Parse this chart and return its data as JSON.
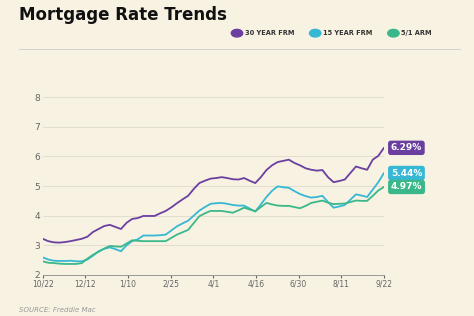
{
  "title": "Mortgage Rate Trends",
  "background_color": "#f7f2e2",
  "source_text": "SOURCE: Freddie Mac",
  "x_labels": [
    "10/22",
    "12/12",
    "1/10",
    "2/25",
    "4/1",
    "4/16",
    "6/30",
    "8/11",
    "9/22"
  ],
  "ylim": [
    2,
    8.4
  ],
  "yticks": [
    2,
    3,
    4,
    5,
    6,
    7,
    8
  ],
  "series": {
    "30 YEAR FRM": {
      "color": "#6b3fa0",
      "end_value": "6.29%",
      "badge_color": "#6b3fa0",
      "data": [
        3.22,
        3.14,
        3.1,
        3.09,
        3.11,
        3.14,
        3.18,
        3.22,
        3.29,
        3.45,
        3.55,
        3.65,
        3.69,
        3.62,
        3.55,
        3.76,
        3.89,
        3.92,
        3.99,
        3.99,
        3.99,
        4.08,
        4.16,
        4.28,
        4.42,
        4.55,
        4.67,
        4.9,
        5.1,
        5.18,
        5.25,
        5.27,
        5.3,
        5.27,
        5.23,
        5.22,
        5.27,
        5.18,
        5.1,
        5.3,
        5.54,
        5.7,
        5.81,
        5.85,
        5.89,
        5.78,
        5.7,
        5.6,
        5.55,
        5.52,
        5.54,
        5.3,
        5.13,
        5.17,
        5.22,
        5.44,
        5.66,
        5.6,
        5.55,
        5.89,
        6.02,
        6.29
      ]
    },
    "15 YEAR FRM": {
      "color": "#36b8d4",
      "end_value": "5.44%",
      "badge_color": "#36b8d4",
      "data": [
        2.59,
        2.52,
        2.48,
        2.47,
        2.47,
        2.48,
        2.46,
        2.46,
        2.52,
        2.65,
        2.8,
        2.88,
        2.93,
        2.87,
        2.8,
        3.0,
        3.14,
        3.2,
        3.33,
        3.33,
        3.33,
        3.34,
        3.36,
        3.5,
        3.64,
        3.74,
        3.83,
        4.0,
        4.17,
        4.29,
        4.4,
        4.42,
        4.43,
        4.4,
        4.36,
        4.34,
        4.34,
        4.24,
        4.14,
        4.38,
        4.63,
        4.84,
        4.99,
        4.96,
        4.94,
        4.83,
        4.73,
        4.66,
        4.61,
        4.63,
        4.67,
        4.46,
        4.27,
        4.31,
        4.36,
        4.54,
        4.72,
        4.68,
        4.63,
        4.88,
        5.13,
        5.44
      ]
    },
    "5/1 ARM": {
      "color": "#3bb88a",
      "end_value": "4.97%",
      "badge_color": "#3bb88a",
      "data": [
        2.46,
        2.41,
        2.4,
        2.38,
        2.37,
        2.37,
        2.37,
        2.4,
        2.55,
        2.68,
        2.78,
        2.89,
        2.98,
        2.96,
        2.95,
        3.06,
        3.17,
        3.15,
        3.14,
        3.14,
        3.14,
        3.14,
        3.14,
        3.25,
        3.36,
        3.44,
        3.52,
        3.75,
        3.98,
        4.08,
        4.16,
        4.16,
        4.16,
        4.13,
        4.1,
        4.18,
        4.27,
        4.21,
        4.15,
        4.29,
        4.43,
        4.38,
        4.34,
        4.33,
        4.33,
        4.29,
        4.25,
        4.33,
        4.43,
        4.47,
        4.51,
        4.44,
        4.39,
        4.4,
        4.41,
        4.46,
        4.51,
        4.5,
        4.5,
        4.67,
        4.85,
        4.97
      ]
    }
  },
  "legend_items": [
    {
      "label": "30 YEAR FRM",
      "color": "#6b3fa0"
    },
    {
      "label": "15 YEAR FRM",
      "color": "#36b8d4"
    },
    {
      "label": "5/1 ARM",
      "color": "#3bb88a"
    }
  ]
}
